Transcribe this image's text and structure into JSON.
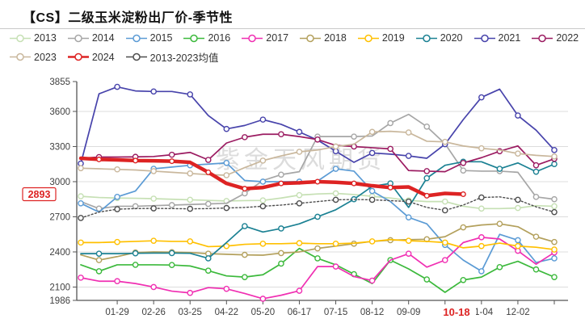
{
  "title": "【CS】二级玉米淀粉出厂价-季节性",
  "watermark": "紫金天风期货",
  "chart_data": {
    "type": "line",
    "title": "【CS】二级玉米淀粉出厂价-季节性",
    "ylim": [
      1986,
      3855
    ],
    "y_ticks": [
      3855,
      3600,
      3300,
      3000,
      2700,
      2400,
      2100,
      1986
    ],
    "x_tick_labels": [
      "01-29",
      "02-26",
      "03-25",
      "04-22",
      "05-20",
      "06-17",
      "07-15",
      "08-12",
      "09-09",
      "11-04",
      "12-02"
    ],
    "grid": "horizontal",
    "legend_position": "top",
    "x": [
      "01-01",
      "01-15",
      "01-29",
      "02-12",
      "02-26",
      "03-11",
      "03-25",
      "04-08",
      "04-22",
      "05-06",
      "05-20",
      "06-03",
      "06-17",
      "07-01",
      "07-15",
      "07-29",
      "08-12",
      "08-26",
      "09-09",
      "09-23",
      "10-07",
      "10-21",
      "11-04",
      "11-18",
      "12-02",
      "12-16",
      "12-30"
    ],
    "series": [
      {
        "name": "2013",
        "color": "#c6e0b4",
        "values": [
          2875,
          2865,
          2860,
          2858,
          2855,
          2850,
          2845,
          2840,
          2835,
          2838,
          2840,
          2860,
          2885,
          2895,
          2900,
          2890,
          2875,
          2860,
          2840,
          2830,
          2830,
          2790,
          2770,
          2770,
          2775,
          2795,
          2790
        ]
      },
      {
        "name": "2014",
        "color": "#a6a6a6",
        "values": [
          2830,
          2770,
          2790,
          2790,
          2795,
          2800,
          2805,
          2810,
          2815,
          2900,
          3010,
          3060,
          3085,
          3385,
          3385,
          3385,
          3390,
          3500,
          3575,
          3470,
          3324,
          3095,
          3090,
          3090,
          3080,
          2870,
          2850
        ]
      },
      {
        "name": "2015",
        "color": "#5b9bd5",
        "values": [
          2815,
          2740,
          2870,
          2920,
          3110,
          3125,
          3140,
          3150,
          3160,
          3010,
          3000,
          3000,
          3000,
          3005,
          3110,
          3090,
          2920,
          2830,
          2695,
          2640,
          2460,
          2330,
          2235,
          2550,
          2500,
          2310,
          2345
        ]
      },
      {
        "name": "2016",
        "color": "#3cb93c",
        "values": [
          2290,
          2235,
          2290,
          2290,
          2290,
          2288,
          2280,
          2240,
          2195,
          2185,
          2205,
          2300,
          2430,
          2345,
          2290,
          2210,
          2130,
          2330,
          2255,
          2165,
          2055,
          2160,
          2185,
          2270,
          2320,
          2250,
          2185
        ]
      },
      {
        "name": "2017",
        "color": "#f02fb2",
        "values": [
          2180,
          2150,
          2150,
          2130,
          2100,
          2065,
          2050,
          2095,
          2085,
          2045,
          2000,
          2030,
          2068,
          2275,
          2275,
          2190,
          2155,
          2330,
          2385,
          2270,
          2330,
          2480,
          2525,
          2510,
          2410,
          2295,
          2395
        ]
      },
      {
        "name": "2018",
        "color": "#b3a05c",
        "values": [
          2375,
          2330,
          2360,
          2395,
          2400,
          2398,
          2395,
          2385,
          2380,
          2375,
          2372,
          2390,
          2400,
          2430,
          2450,
          2470,
          2490,
          2500,
          2505,
          2508,
          2530,
          2610,
          2630,
          2640,
          2615,
          2530,
          2485
        ]
      },
      {
        "name": "2019",
        "color": "#ffc000",
        "values": [
          2480,
          2480,
          2485,
          2490,
          2495,
          2490,
          2490,
          2445,
          2450,
          2465,
          2470,
          2470,
          2475,
          2470,
          2470,
          2475,
          2490,
          2505,
          2495,
          2490,
          2480,
          2435,
          2450,
          2475,
          2450,
          2440,
          2420
        ]
      },
      {
        "name": "2020",
        "color": "#1b8193",
        "values": [
          2385,
          2385,
          2385,
          2388,
          2390,
          2390,
          2388,
          2345,
          2480,
          2620,
          2570,
          2600,
          2640,
          2700,
          2760,
          2850,
          2960,
          2985,
          2780,
          3030,
          3140,
          3170,
          3170,
          3110,
          3160,
          3085,
          3150
        ]
      },
      {
        "name": "2021",
        "color": "#4743ab",
        "values": [
          3155,
          3750,
          3810,
          3775,
          3770,
          3770,
          3745,
          3565,
          3450,
          3480,
          3530,
          3490,
          3425,
          3355,
          3260,
          3165,
          3245,
          3235,
          3220,
          3200,
          3320,
          3530,
          3720,
          3790,
          3565,
          3440,
          3270
        ]
      },
      {
        "name": "2022",
        "color": "#9b1b61",
        "values": [
          3200,
          3210,
          3210,
          3212,
          3215,
          3230,
          3250,
          3186,
          3330,
          3380,
          3405,
          3405,
          3385,
          3360,
          3310,
          3300,
          3290,
          3280,
          3095,
          3090,
          3085,
          3160,
          3205,
          3260,
          3305,
          3140,
          3195
        ]
      },
      {
        "name": "2023",
        "color": "#c9b79c",
        "values": [
          3115,
          3110,
          3105,
          3100,
          3090,
          3080,
          3070,
          3060,
          3055,
          3120,
          3180,
          3220,
          3255,
          3270,
          3300,
          3320,
          3425,
          3430,
          3420,
          3345,
          3340,
          3305,
          3285,
          3270,
          3240,
          3225,
          3215
        ]
      },
      {
        "name": "2024",
        "color": "#dd2323",
        "emphasis": true,
        "values": [
          3200,
          3190,
          3186,
          3180,
          3178,
          3175,
          3165,
          3080,
          2985,
          2940,
          2950,
          2985,
          2990,
          3000,
          2995,
          2985,
          2965,
          2950,
          2955,
          2880,
          2900,
          2893
        ]
      },
      {
        "name": "2013-2023均值",
        "color": "#4d4d4d",
        "dashed": true,
        "values": [
          2690,
          2740,
          2765,
          2770,
          2772,
          2770,
          2768,
          2770,
          2775,
          2780,
          2790,
          2800,
          2815,
          2830,
          2845,
          2848,
          2845,
          2838,
          2830,
          2780,
          2755,
          2800,
          2865,
          2870,
          2845,
          2785,
          2740
        ]
      }
    ],
    "current_marker": {
      "x_label": "10-18",
      "y_label": "2893",
      "color": "#dd2323",
      "partially_hidden_x_label": "11-04"
    }
  }
}
